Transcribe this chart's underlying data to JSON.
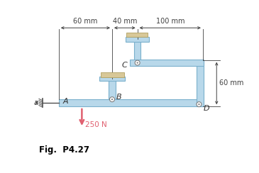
{
  "bg_color": "#ffffff",
  "frame_color": "#b8d8ea",
  "frame_edge": "#7ab0cc",
  "pad_color": "#d8c898",
  "pad_edge": "#b0a060",
  "pin_face": "#ffffff",
  "pin_edge": "#808080",
  "pin_dot": "#808080",
  "dim_color": "#404040",
  "force_color": "#e06070",
  "label_color": "#303030",
  "title": "Fig.  P4.27",
  "force_label": "250 N",
  "dim1": "60 mm",
  "dim2": "40 mm",
  "dim3": "100 mm",
  "dim4": "60 mm",
  "label_A": "A",
  "label_B": "B",
  "label_C": "C",
  "label_D": "D",
  "label_a": "a"
}
